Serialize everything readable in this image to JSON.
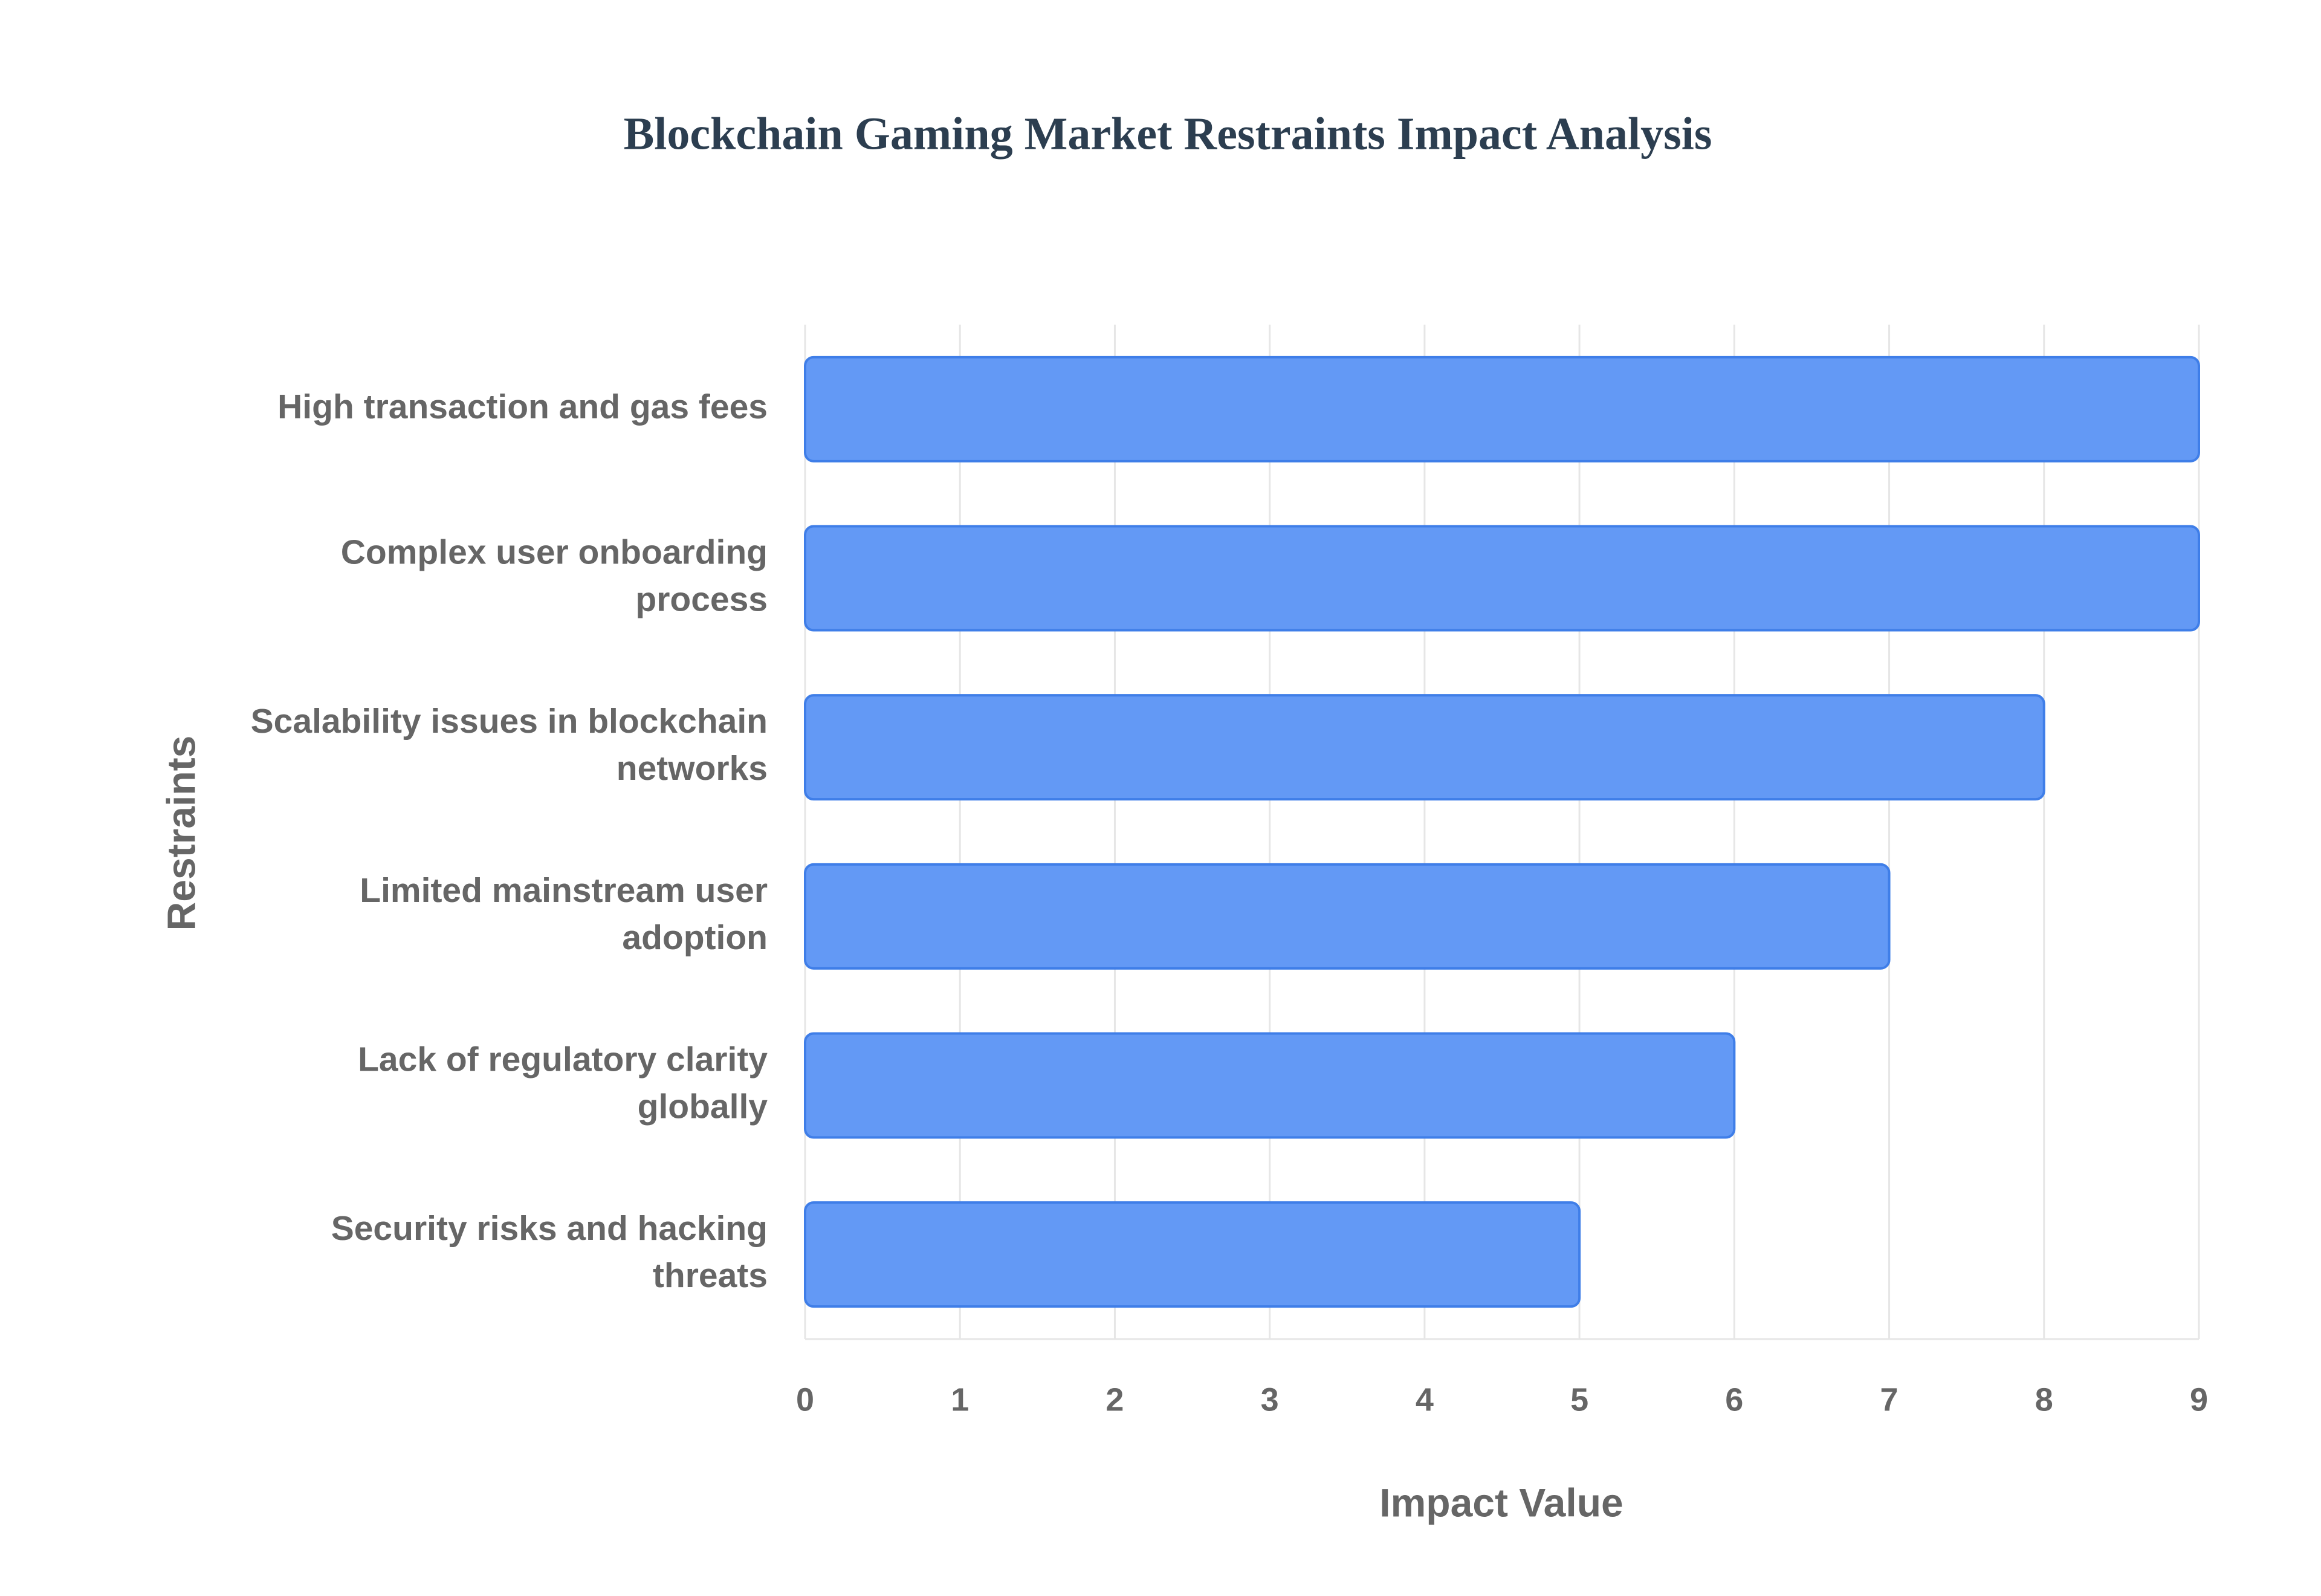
{
  "chart_data": {
    "type": "bar",
    "orientation": "horizontal",
    "title": "Blockchain Gaming Market Restraints Impact Analysis",
    "xlabel": "Impact Value",
    "ylabel": "Restraints",
    "categories": [
      "High transaction and gas fees",
      "Complex user onboarding process",
      "Scalability issues in blockchain networks",
      "Limited mainstream user adoption",
      "Lack of regulatory clarity globally",
      "Security risks and hacking threats"
    ],
    "values": [
      9,
      9,
      8,
      7,
      6,
      5
    ],
    "color": "#6399f5",
    "edge_color": "#3f7ee8",
    "xlim": [
      0,
      9
    ],
    "xticks": [
      0,
      1,
      2,
      3,
      4,
      5,
      6,
      7,
      8,
      9
    ],
    "grid": true
  }
}
